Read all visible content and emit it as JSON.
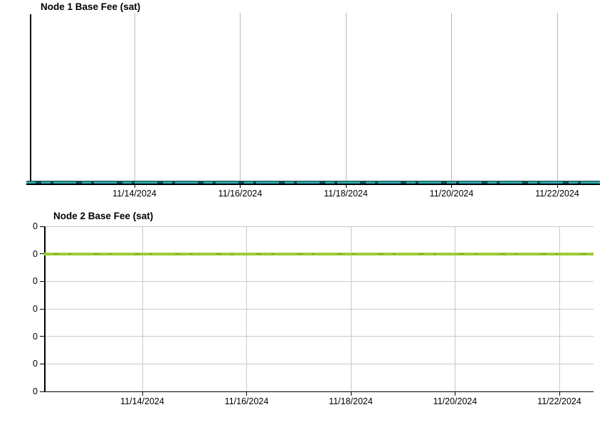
{
  "charts": [
    {
      "id": "node1-base-fee",
      "title": "Node 1 Base Fee (sat)",
      "x_tick_labels": [
        "11/14/2024",
        "11/16/2024",
        "11/18/2024",
        "11/20/2024",
        "11/22/2024"
      ],
      "y_tick_labels": [],
      "line_color": "#2ea3a8",
      "marker_color": "#0c4a4e",
      "axis_color": "#000000",
      "grid_color": "#b9b9b9"
    },
    {
      "id": "node2-base-fee",
      "title": "Node 2 Base Fee (sat)",
      "x_tick_labels": [
        "11/14/2024",
        "11/16/2024",
        "11/18/2024",
        "11/20/2024",
        "11/22/2024"
      ],
      "y_tick_labels": [
        "0",
        "0",
        "0",
        "0",
        "0",
        "0",
        "0"
      ],
      "line_color": "#9bce35",
      "marker_color": "#82b32a",
      "axis_color": "#000000",
      "grid_color": "#c9c9c9"
    }
  ],
  "chart_data": [
    {
      "type": "line",
      "title": "Node 1 Base Fee (sat)",
      "xlabel": "",
      "ylabel": "",
      "x": [
        "11/14/2024",
        "11/16/2024",
        "11/18/2024",
        "11/20/2024",
        "11/22/2024"
      ],
      "series": [
        {
          "name": "Node 1 base fee (sat)",
          "values": [
            0,
            0,
            0,
            0,
            0
          ],
          "color": "#2ea3a8"
        }
      ],
      "legend": false,
      "grid": "vertical-only",
      "note": "flat line at 0 drawn along the x-axis"
    },
    {
      "type": "line",
      "title": "Node 2 Base Fee (sat)",
      "xlabel": "",
      "ylabel": "",
      "x": [
        "11/14/2024",
        "11/16/2024",
        "11/18/2024",
        "11/20/2024",
        "11/22/2024"
      ],
      "series": [
        {
          "name": "Node 2 base fee (sat)",
          "values": [
            0,
            0,
            0,
            0,
            0
          ],
          "color": "#9bce35"
        }
      ],
      "y_tick_labels": [
        "0",
        "0",
        "0",
        "0",
        "0",
        "0",
        "0"
      ],
      "legend": false,
      "grid": "full",
      "note": "flat line at 0 drawn at the second gridline from the top; all y-axis ticks read 0"
    }
  ]
}
